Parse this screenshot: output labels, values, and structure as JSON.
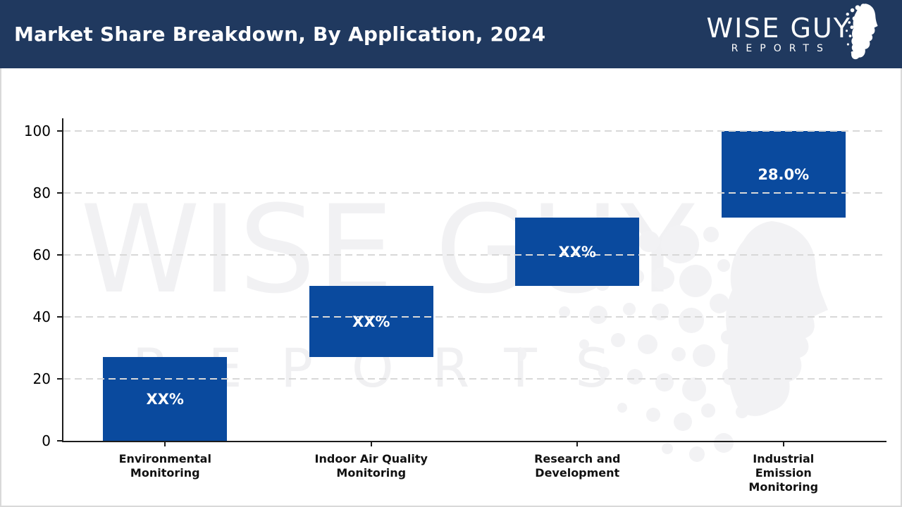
{
  "header": {
    "title": "Market Share Breakdown, By Application, 2024",
    "bg_color": "#20395f",
    "logo": {
      "name": "WISE GUY",
      "subtitle": "REPORTS"
    }
  },
  "watermark": {
    "line1": "WISE GUY",
    "line2": "REPORTS"
  },
  "chart_data": {
    "type": "bar",
    "subtype": "waterfall",
    "title": "Market Share Breakdown, By Application, 2024",
    "categories": [
      [
        "Environmental",
        "Monitoring"
      ],
      [
        "Indoor Air Quality",
        "Monitoring"
      ],
      [
        "Research and",
        "Development"
      ],
      [
        "Industrial",
        "Emission",
        "Monitoring"
      ]
    ],
    "segments": [
      {
        "category": "Environmental Monitoring",
        "start": 0,
        "end": 27,
        "value": 27,
        "label": "XX%"
      },
      {
        "category": "Indoor Air Quality Monitoring",
        "start": 27,
        "end": 50,
        "value": 23,
        "label": "XX%"
      },
      {
        "category": "Research and Development",
        "start": 50,
        "end": 72,
        "value": 22,
        "label": "XX%"
      },
      {
        "category": "Industrial Emission Monitoring",
        "start": 72,
        "end": 100,
        "value": 28,
        "label": "28.0%"
      }
    ],
    "yticks": [
      0,
      20,
      40,
      60,
      80,
      100
    ],
    "ylim": [
      0,
      104
    ],
    "grid": true,
    "gridline_style": "dashed",
    "legend_position": "none",
    "bar_color": "#0a4a9e",
    "bar_label_color": "#ffffff",
    "axis_color": "#1c1c1c"
  }
}
